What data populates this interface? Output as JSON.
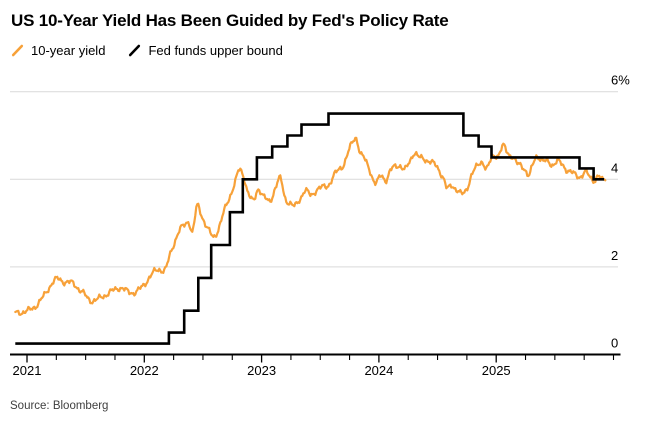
{
  "header": {
    "title": "US 10-Year Yield Has Been Guided by Fed's Policy Rate"
  },
  "legend": [
    {
      "label": "10-year yield",
      "color": "#f7a139"
    },
    {
      "label": "Fed funds upper bound",
      "color": "#000000"
    }
  ],
  "source": "Source: Bloomberg",
  "colors": {
    "grid": "#d9d9d9",
    "axis": "#000000",
    "tick": "#000000",
    "yield_line": "#f7a139",
    "fed_line": "#000000"
  },
  "chart_data": {
    "type": "line",
    "title": "US 10-Year Yield Has Been Guided by Fed's Policy Rate",
    "xlabel": "",
    "ylabel": "",
    "grid": "horizontal",
    "legend_position": "top-left",
    "x_range": [
      2020.9,
      2025.93
    ],
    "y_range": [
      0,
      6.2
    ],
    "y_ticks": [
      {
        "v": 0,
        "label": "0"
      },
      {
        "v": 2,
        "label": "2"
      },
      {
        "v": 4,
        "label": "4"
      },
      {
        "v": 6,
        "label": "6%"
      }
    ],
    "x_ticks": [
      {
        "t": 2021,
        "label": "2021"
      },
      {
        "t": 2022,
        "label": "2022"
      },
      {
        "t": 2023,
        "label": "2023"
      },
      {
        "t": 2024,
        "label": "2024"
      },
      {
        "t": 2025,
        "label": "2025"
      }
    ],
    "x_minor_ticks": [
      2021.25,
      2021.5,
      2021.75,
      2022.25,
      2022.5,
      2022.75,
      2023.25,
      2023.5,
      2023.75,
      2024.25,
      2024.5,
      2024.75,
      2025.25,
      2025.5,
      2025.75,
      2026.0
    ],
    "series": [
      {
        "name": "10-year yield",
        "style": "noisy-line",
        "color": "#f7a139",
        "points": [
          [
            2020.9,
            0.93
          ],
          [
            2021.0,
            0.95
          ],
          [
            2021.06,
            1.08
          ],
          [
            2021.13,
            1.32
          ],
          [
            2021.21,
            1.64
          ],
          [
            2021.26,
            1.7
          ],
          [
            2021.32,
            1.62
          ],
          [
            2021.4,
            1.6
          ],
          [
            2021.47,
            1.46
          ],
          [
            2021.54,
            1.27
          ],
          [
            2021.6,
            1.24
          ],
          [
            2021.66,
            1.31
          ],
          [
            2021.73,
            1.43
          ],
          [
            2021.8,
            1.56
          ],
          [
            2021.87,
            1.45
          ],
          [
            2021.93,
            1.44
          ],
          [
            2021.99,
            1.52
          ],
          [
            2022.06,
            1.8
          ],
          [
            2022.13,
            1.96
          ],
          [
            2022.18,
            2.0
          ],
          [
            2022.23,
            2.38
          ],
          [
            2022.29,
            2.78
          ],
          [
            2022.35,
            2.92
          ],
          [
            2022.38,
            3.0
          ],
          [
            2022.41,
            2.78
          ],
          [
            2022.45,
            3.38
          ],
          [
            2022.49,
            3.2
          ],
          [
            2022.54,
            2.92
          ],
          [
            2022.59,
            2.7
          ],
          [
            2022.63,
            2.86
          ],
          [
            2022.68,
            3.22
          ],
          [
            2022.73,
            3.58
          ],
          [
            2022.78,
            3.98
          ],
          [
            2022.81,
            4.22
          ],
          [
            2022.85,
            4.08
          ],
          [
            2022.88,
            3.78
          ],
          [
            2022.93,
            3.52
          ],
          [
            2022.97,
            3.78
          ],
          [
            2023.02,
            3.56
          ],
          [
            2023.07,
            3.46
          ],
          [
            2023.12,
            3.82
          ],
          [
            2023.16,
            4.02
          ],
          [
            2023.2,
            3.62
          ],
          [
            2023.24,
            3.5
          ],
          [
            2023.28,
            3.4
          ],
          [
            2023.33,
            3.56
          ],
          [
            2023.37,
            3.7
          ],
          [
            2023.42,
            3.6
          ],
          [
            2023.47,
            3.76
          ],
          [
            2023.52,
            3.84
          ],
          [
            2023.57,
            3.92
          ],
          [
            2023.62,
            4.12
          ],
          [
            2023.66,
            4.22
          ],
          [
            2023.7,
            4.32
          ],
          [
            2023.74,
            4.58
          ],
          [
            2023.78,
            4.84
          ],
          [
            2023.805,
            4.94
          ],
          [
            2023.84,
            4.62
          ],
          [
            2023.88,
            4.48
          ],
          [
            2023.92,
            4.28
          ],
          [
            2023.97,
            3.92
          ],
          [
            2024.02,
            4.08
          ],
          [
            2024.06,
            3.95
          ],
          [
            2024.1,
            4.15
          ],
          [
            2024.14,
            4.28
          ],
          [
            2024.18,
            4.32
          ],
          [
            2024.22,
            4.24
          ],
          [
            2024.26,
            4.44
          ],
          [
            2024.3,
            4.64
          ],
          [
            2024.34,
            4.5
          ],
          [
            2024.4,
            4.42
          ],
          [
            2024.45,
            4.34
          ],
          [
            2024.5,
            4.25
          ],
          [
            2024.55,
            4.05
          ],
          [
            2024.58,
            3.82
          ],
          [
            2024.62,
            3.9
          ],
          [
            2024.66,
            3.8
          ],
          [
            2024.71,
            3.64
          ],
          [
            2024.75,
            3.76
          ],
          [
            2024.79,
            4.06
          ],
          [
            2024.84,
            4.28
          ],
          [
            2024.88,
            4.42
          ],
          [
            2024.92,
            4.28
          ],
          [
            2024.97,
            4.56
          ],
          [
            2025.02,
            4.58
          ],
          [
            2025.06,
            4.73
          ],
          [
            2025.1,
            4.56
          ],
          [
            2025.14,
            4.48
          ],
          [
            2025.18,
            4.32
          ],
          [
            2025.21,
            4.32
          ],
          [
            2025.24,
            4.28
          ],
          [
            2025.28,
            4.12
          ],
          [
            2025.31,
            4.35
          ],
          [
            2025.345,
            4.56
          ],
          [
            2025.4,
            4.4
          ],
          [
            2025.44,
            4.36
          ],
          [
            2025.48,
            4.3
          ],
          [
            2025.52,
            4.38
          ],
          [
            2025.56,
            4.34
          ],
          [
            2025.6,
            4.26
          ],
          [
            2025.64,
            4.2
          ],
          [
            2025.68,
            4.12
          ],
          [
            2025.72,
            4.08
          ],
          [
            2025.76,
            4.14
          ],
          [
            2025.8,
            4.0
          ],
          [
            2025.84,
            3.95
          ],
          [
            2025.87,
            4.06
          ],
          [
            2025.9,
            3.97
          ],
          [
            2025.93,
            4.04
          ]
        ]
      },
      {
        "name": "Fed funds upper bound",
        "style": "step",
        "color": "#000000",
        "points": [
          [
            2020.9,
            0.25
          ],
          [
            2022.21,
            0.5
          ],
          [
            2022.34,
            1.0
          ],
          [
            2022.46,
            1.75
          ],
          [
            2022.57,
            2.5
          ],
          [
            2022.73,
            3.25
          ],
          [
            2022.84,
            4.0
          ],
          [
            2022.96,
            4.5
          ],
          [
            2023.09,
            4.75
          ],
          [
            2023.22,
            5.0
          ],
          [
            2023.34,
            5.25
          ],
          [
            2023.57,
            5.5
          ],
          [
            2024.72,
            5.0
          ],
          [
            2024.85,
            4.75
          ],
          [
            2024.96,
            4.5
          ],
          [
            2025.71,
            4.25
          ],
          [
            2025.83,
            4.0
          ],
          [
            2025.92,
            4.0
          ]
        ]
      }
    ]
  }
}
